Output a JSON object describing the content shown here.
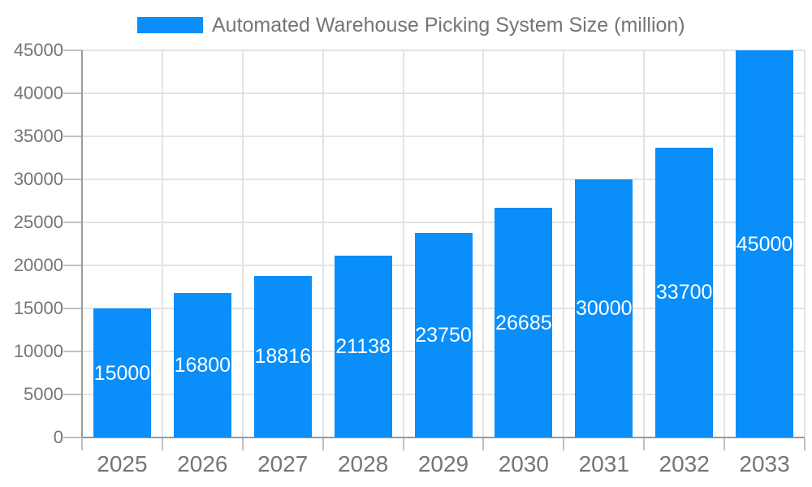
{
  "legend": {
    "label": "Automated Warehouse Picking System Size (million)"
  },
  "chart_data": {
    "type": "bar",
    "title": "Automated Warehouse Picking System Size (million)",
    "categories": [
      "2025",
      "2026",
      "2027",
      "2028",
      "2029",
      "2030",
      "2031",
      "2032",
      "2033"
    ],
    "values": [
      15000,
      16800,
      18816,
      21138,
      23750,
      26685,
      30000,
      33700,
      45000
    ],
    "xlabel": "",
    "ylabel": "",
    "ylim": [
      0,
      45000
    ],
    "yticks": [
      0,
      5000,
      10000,
      15000,
      20000,
      25000,
      30000,
      35000,
      40000,
      45000
    ],
    "grid": true,
    "legend_position": "top-center",
    "bar_value_labels_shown": true,
    "colors": {
      "bar": "#0a8ef9",
      "label_text": "#757575",
      "bar_value_text": "#ffffff",
      "gridline": "#e3e3e3",
      "tick": "#c0c0c0",
      "axis_line": "#9a9a9a",
      "background": "#ffffff"
    }
  }
}
